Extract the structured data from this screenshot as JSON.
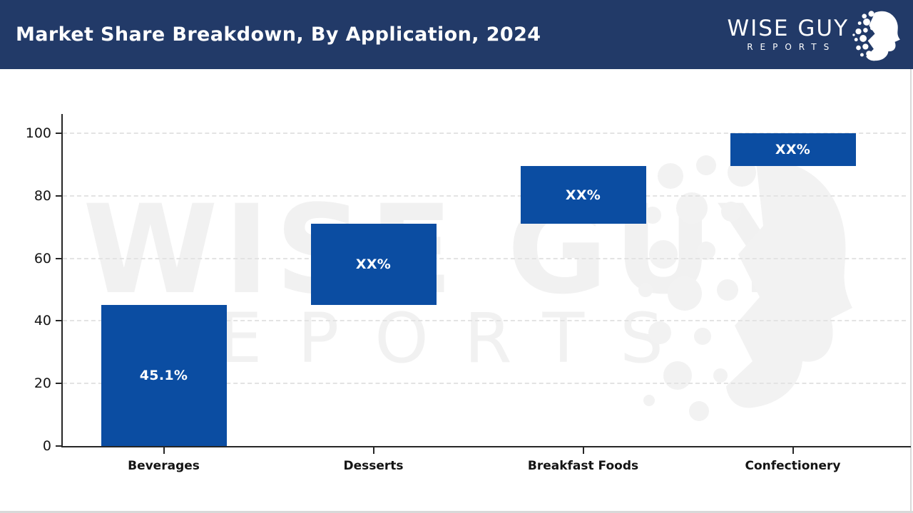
{
  "header": {
    "title": "Market Share Breakdown, By Application, 2024",
    "logo": {
      "line1": "WISE GUY",
      "line2": "REPORTS"
    }
  },
  "watermark": {
    "line1": "WISE GUY",
    "line2": "REPORTS"
  },
  "colors": {
    "header_bg": "#223a68",
    "bar": "#0b4da2",
    "bar_label": "#ffffff",
    "grid": "#e3e3e3",
    "axis": "#262626",
    "watermark": "#f1f1f1"
  },
  "chart_data": {
    "type": "bar",
    "subtype": "waterfall-stacked-breakdown",
    "title": "Market Share Breakdown, By Application, 2024",
    "categories": [
      "Beverages",
      "Desserts",
      "Breakfast Foods",
      "Confectionery"
    ],
    "segments": [
      {
        "category": "Beverages",
        "start": 0,
        "end": 45.1,
        "label": "45.1%"
      },
      {
        "category": "Desserts",
        "start": 45.1,
        "end": 71,
        "label": "XX%"
      },
      {
        "category": "Breakfast Foods",
        "start": 71,
        "end": 89.5,
        "label": "XX%"
      },
      {
        "category": "Confectionery",
        "start": 89.5,
        "end": 100,
        "label": "XX%"
      }
    ],
    "xlabel": "",
    "ylabel": "",
    "yticks": [
      0,
      20,
      40,
      60,
      80,
      100
    ],
    "ylim": [
      0,
      105
    ],
    "grid": "horizontal-dashed",
    "legend": "none"
  }
}
